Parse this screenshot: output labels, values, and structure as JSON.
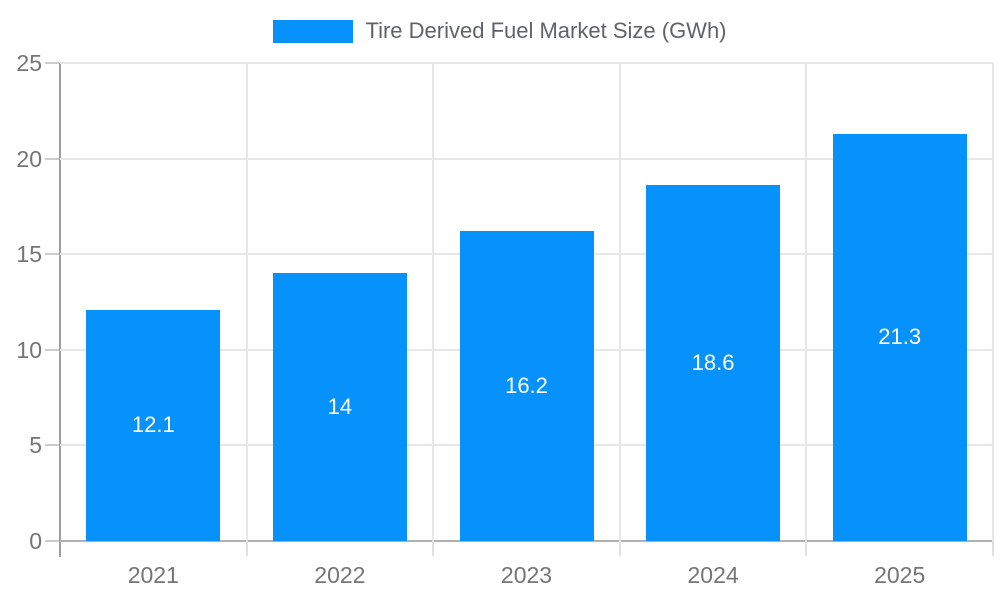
{
  "legend": {
    "label": "Tire Derived Fuel Market Size (GWh)"
  },
  "colors": {
    "bar": "#0691fb",
    "legend_text": "#5f6368",
    "axis_text": "#757575",
    "gridline": "#e7e7e7",
    "y_axis_line": "#9e9e9e",
    "x_axis_line": "#b0b0b0",
    "value_label": "#ffffff"
  },
  "chart_data": {
    "type": "bar",
    "title": "Tire Derived Fuel Market Size (GWh)",
    "categories": [
      "2021",
      "2022",
      "2023",
      "2024",
      "2025"
    ],
    "series": [
      {
        "name": "Tire Derived Fuel Market Size (GWh)",
        "values": [
          12.1,
          14,
          16.2,
          18.6,
          21.3
        ]
      }
    ],
    "value_labels": [
      "12.1",
      "14",
      "16.2",
      "18.6",
      "21.3"
    ],
    "xlabel": "",
    "ylabel": "",
    "ylim": [
      0,
      25
    ],
    "yticks": [
      0,
      5,
      10,
      15,
      20,
      25
    ],
    "grid": true,
    "legend_position": "top",
    "value_label_position": "inside-center"
  }
}
